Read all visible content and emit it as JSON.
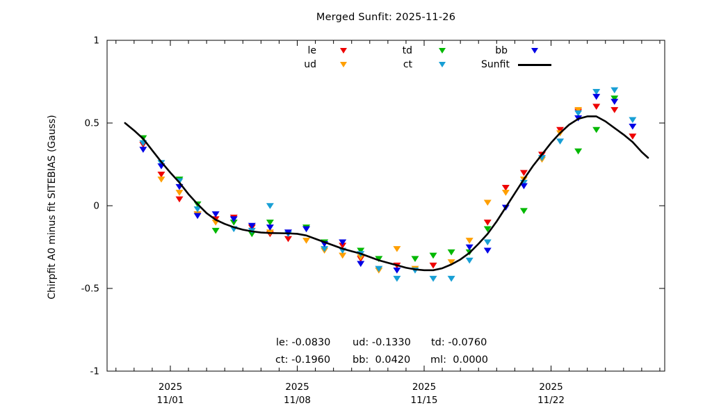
{
  "chart_data": {
    "type": "scatter+line",
    "title": "Merged Sunfit: 2025-11-26",
    "ylabel": "Chirpfit A0 minus fit SITEBIAS (Gauss)",
    "xlabel": "",
    "x_unit": "days since 2025-11-01 00:00 (points plotted at local noon of each day)",
    "xlim": [
      -3.49,
      27.27
    ],
    "ylim": [
      -1,
      1
    ],
    "grid": false,
    "legend_position": "top-inside",
    "xticks": [
      {
        "day": 0,
        "line1": "2025",
        "line2": "11/01"
      },
      {
        "day": 7,
        "line1": "2025",
        "line2": "11/08"
      },
      {
        "day": 14,
        "line1": "2025",
        "line2": "11/15"
      },
      {
        "day": 21,
        "line1": "2025",
        "line2": "11/22"
      }
    ],
    "yticks": [
      {
        "v": -1,
        "label": "-1"
      },
      {
        "v": -0.5,
        "label": "-0.5"
      },
      {
        "v": 0,
        "label": "0"
      },
      {
        "v": 0.5,
        "label": "0.5"
      },
      {
        "v": 1,
        "label": "1"
      }
    ],
    "series": [
      {
        "name": "le",
        "type": "scatter",
        "marker": "triangle-down",
        "color": "#ee0000",
        "points": [
          [
            -1.5,
            0.37
          ],
          [
            -0.5,
            0.19
          ],
          [
            0.5,
            0.04
          ],
          [
            1.5,
            -0.05
          ],
          [
            2.5,
            -0.08
          ],
          [
            3.5,
            -0.07
          ],
          [
            4.5,
            -0.13
          ],
          [
            5.5,
            -0.17
          ],
          [
            6.5,
            -0.2
          ],
          [
            9.5,
            -0.24
          ],
          [
            10.5,
            -0.32
          ],
          [
            12.5,
            -0.36
          ],
          [
            14.5,
            -0.36
          ],
          [
            17.5,
            -0.1
          ],
          [
            18.5,
            0.11
          ],
          [
            19.5,
            0.2
          ],
          [
            20.5,
            0.31
          ],
          [
            21.5,
            0.46
          ],
          [
            22.5,
            0.57
          ],
          [
            23.5,
            0.6
          ],
          [
            24.5,
            0.58
          ],
          [
            25.5,
            0.42
          ]
        ]
      },
      {
        "name": "ud",
        "type": "scatter",
        "marker": "triangle-down",
        "color": "#ff9f00",
        "points": [
          [
            -0.5,
            0.16
          ],
          [
            0.5,
            0.08
          ],
          [
            1.5,
            -0.05
          ],
          [
            2.5,
            -0.1
          ],
          [
            5.5,
            -0.16
          ],
          [
            7.5,
            -0.21
          ],
          [
            8.5,
            -0.27
          ],
          [
            9.5,
            -0.3
          ],
          [
            10.5,
            -0.31
          ],
          [
            11.5,
            -0.39
          ],
          [
            12.5,
            -0.26
          ],
          [
            13.5,
            -0.38
          ],
          [
            15.5,
            -0.34
          ],
          [
            16.5,
            -0.21
          ],
          [
            17.5,
            0.02
          ],
          [
            18.5,
            0.08
          ],
          [
            19.5,
            0.16
          ],
          [
            20.5,
            0.28
          ],
          [
            21.5,
            0.44
          ],
          [
            22.5,
            0.58
          ]
        ]
      },
      {
        "name": "td",
        "type": "scatter",
        "marker": "triangle-down",
        "color": "#00b800",
        "points": [
          [
            -1.5,
            0.41
          ],
          [
            0.5,
            0.16
          ],
          [
            1.5,
            0.01
          ],
          [
            2.5,
            -0.15
          ],
          [
            3.5,
            -0.1
          ],
          [
            4.5,
            -0.17
          ],
          [
            5.5,
            -0.1
          ],
          [
            7.5,
            -0.13
          ],
          [
            8.5,
            -0.22
          ],
          [
            10.5,
            -0.27
          ],
          [
            11.5,
            -0.32
          ],
          [
            13.5,
            -0.32
          ],
          [
            14.5,
            -0.3
          ],
          [
            15.5,
            -0.28
          ],
          [
            16.5,
            -0.28
          ],
          [
            17.5,
            -0.14
          ],
          [
            19.5,
            -0.03
          ],
          [
            22.5,
            0.33
          ],
          [
            23.5,
            0.46
          ],
          [
            24.5,
            0.65
          ]
        ]
      },
      {
        "name": "ct",
        "type": "scatter",
        "marker": "triangle-down",
        "color": "#189fd5",
        "points": [
          [
            -1.5,
            0.38
          ],
          [
            -0.5,
            0.26
          ],
          [
            0.5,
            0.15
          ],
          [
            1.5,
            -0.02
          ],
          [
            3.5,
            -0.14
          ],
          [
            4.5,
            -0.15
          ],
          [
            5.5,
            0.0
          ],
          [
            6.5,
            -0.17
          ],
          [
            7.5,
            -0.14
          ],
          [
            8.5,
            -0.26
          ],
          [
            9.5,
            -0.27
          ],
          [
            10.5,
            -0.29
          ],
          [
            11.5,
            -0.38
          ],
          [
            12.5,
            -0.44
          ],
          [
            13.5,
            -0.39
          ],
          [
            14.5,
            -0.44
          ],
          [
            15.5,
            -0.44
          ],
          [
            16.5,
            -0.33
          ],
          [
            17.5,
            -0.22
          ],
          [
            19.5,
            0.14
          ],
          [
            20.5,
            0.29
          ],
          [
            21.5,
            0.39
          ],
          [
            22.5,
            0.56
          ],
          [
            23.5,
            0.69
          ],
          [
            24.5,
            0.7
          ],
          [
            25.5,
            0.52
          ]
        ]
      },
      {
        "name": "bb",
        "type": "scatter",
        "marker": "triangle-down",
        "color": "#0000e6",
        "points": [
          [
            -1.5,
            0.34
          ],
          [
            -0.5,
            0.24
          ],
          [
            0.5,
            0.115
          ],
          [
            1.5,
            -0.06
          ],
          [
            2.5,
            -0.05
          ],
          [
            3.5,
            -0.08
          ],
          [
            4.5,
            -0.12
          ],
          [
            5.5,
            -0.13
          ],
          [
            6.5,
            -0.16
          ],
          [
            7.5,
            -0.14
          ],
          [
            8.5,
            -0.23
          ],
          [
            9.5,
            -0.22
          ],
          [
            10.5,
            -0.35
          ],
          [
            12.5,
            -0.39
          ],
          [
            16.5,
            -0.25
          ],
          [
            17.5,
            -0.27
          ],
          [
            18.5,
            -0.01
          ],
          [
            19.5,
            0.12
          ],
          [
            22.5,
            0.53
          ],
          [
            23.5,
            0.66
          ],
          [
            24.5,
            0.63
          ],
          [
            25.5,
            0.48
          ]
        ]
      },
      {
        "name": "Sunfit",
        "type": "line",
        "color": "#000000",
        "points": [
          [
            -2.5,
            0.5
          ],
          [
            -2.0,
            0.455
          ],
          [
            -1.5,
            0.405
          ],
          [
            -1.0,
            0.335
          ],
          [
            -0.5,
            0.265
          ],
          [
            0,
            0.2
          ],
          [
            0.5,
            0.14
          ],
          [
            1.0,
            0.07
          ],
          [
            1.5,
            0.01
          ],
          [
            2.0,
            -0.045
          ],
          [
            2.5,
            -0.085
          ],
          [
            3.0,
            -0.11
          ],
          [
            3.5,
            -0.13
          ],
          [
            4.0,
            -0.145
          ],
          [
            4.5,
            -0.155
          ],
          [
            5.0,
            -0.162
          ],
          [
            5.5,
            -0.165
          ],
          [
            6.0,
            -0.166
          ],
          [
            6.5,
            -0.167
          ],
          [
            7.0,
            -0.17
          ],
          [
            7.5,
            -0.18
          ],
          [
            8.0,
            -0.2
          ],
          [
            8.5,
            -0.22
          ],
          [
            9.0,
            -0.24
          ],
          [
            9.5,
            -0.26
          ],
          [
            10.0,
            -0.275
          ],
          [
            10.5,
            -0.29
          ],
          [
            11.0,
            -0.31
          ],
          [
            11.5,
            -0.33
          ],
          [
            12.0,
            -0.345
          ],
          [
            12.5,
            -0.36
          ],
          [
            13.0,
            -0.375
          ],
          [
            13.5,
            -0.385
          ],
          [
            14.0,
            -0.39
          ],
          [
            14.5,
            -0.39
          ],
          [
            15.0,
            -0.378
          ],
          [
            15.5,
            -0.355
          ],
          [
            16.0,
            -0.325
          ],
          [
            16.5,
            -0.285
          ],
          [
            17.0,
            -0.23
          ],
          [
            17.5,
            -0.17
          ],
          [
            18.0,
            -0.095
          ],
          [
            18.5,
            -0.01
          ],
          [
            19.0,
            0.075
          ],
          [
            19.5,
            0.16
          ],
          [
            20.0,
            0.24
          ],
          [
            20.5,
            0.31
          ],
          [
            21.0,
            0.38
          ],
          [
            21.5,
            0.44
          ],
          [
            22.0,
            0.49
          ],
          [
            22.5,
            0.525
          ],
          [
            23.0,
            0.54
          ],
          [
            23.5,
            0.54
          ],
          [
            24.0,
            0.51
          ],
          [
            24.5,
            0.47
          ],
          [
            25.0,
            0.43
          ],
          [
            25.5,
            0.385
          ],
          [
            26.0,
            0.325
          ],
          [
            26.35,
            0.29
          ]
        ]
      }
    ],
    "annotations": {
      "rows": [
        [
          "le: -0.0830",
          "ud: -0.1330",
          "td: -0.0760"
        ],
        [
          "ct: -0.1960",
          "bb:  0.0420",
          "ml:  0.0000"
        ]
      ]
    }
  }
}
